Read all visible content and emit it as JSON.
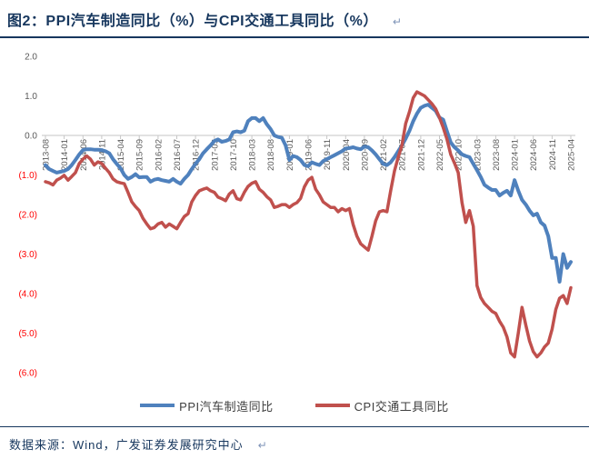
{
  "title": {
    "text": "图2：PPI汽车制造同比（%）与CPI交通工具同比（%）",
    "paragraph_mark": "↵"
  },
  "footer": {
    "text": "数据来源：Wind，广发证券发展研究中心",
    "paragraph_mark": "↵"
  },
  "legend": [
    {
      "label": "PPI汽车制造同比",
      "color": "#4F81BD"
    },
    {
      "label": "CPI交通工具同比",
      "color": "#C0504D"
    }
  ],
  "colors": {
    "navy": "#17375E",
    "axis_line": "#C6C6C6",
    "tick_text": "#595959",
    "negative_tick_text": "#FF0000",
    "legend_text": "#3F3F3F",
    "series_blue": "#4F81BD",
    "series_red": "#C0504D"
  },
  "chart_data": {
    "type": "line",
    "x_start": "2013-08",
    "x_interval_months": 1,
    "n_points": 141,
    "x_tick_labels": [
      "2013-08",
      "2014-01",
      "2014-06",
      "2014-11",
      "2015-04",
      "2015-09",
      "2016-02",
      "2016-07",
      "2016-12",
      "2017-05",
      "2017-10",
      "2018-03",
      "2018-08",
      "2019-01",
      "2019-06",
      "2019-11",
      "2020-04",
      "2020-09",
      "2021-02",
      "2021-07",
      "2021-12",
      "2022-05",
      "2022-10",
      "2023-03",
      "2023-08",
      "2024-01",
      "2024-06",
      "2024-11",
      "2025-04"
    ],
    "x_tick_step": 5,
    "ylim": [
      -6.0,
      2.0
    ],
    "y_ticks": [
      {
        "label": "2.0",
        "value": 2.0,
        "color": "#595959"
      },
      {
        "label": "1.0",
        "value": 1.0,
        "color": "#595959"
      },
      {
        "label": "0.0",
        "value": 0.0,
        "color": "#595959"
      },
      {
        "label": "(1.0)",
        "value": -1.0,
        "color": "#FF0000"
      },
      {
        "label": "(2.0)",
        "value": -2.0,
        "color": "#FF0000"
      },
      {
        "label": "(3.0)",
        "value": -3.0,
        "color": "#FF0000"
      },
      {
        "label": "(4.0)",
        "value": -4.0,
        "color": "#FF0000"
      },
      {
        "label": "(5.0)",
        "value": -5.0,
        "color": "#FF0000"
      },
      {
        "label": "(6.0)",
        "value": -6.0,
        "color": "#FF0000"
      }
    ],
    "grid": false,
    "legend_position": "bottom",
    "series": [
      {
        "name": "PPI汽车制造同比",
        "color": "#4F81BD",
        "values": [
          -0.75,
          -0.85,
          -0.9,
          -0.94,
          -0.92,
          -0.9,
          -0.85,
          -0.75,
          -0.62,
          -0.48,
          -0.37,
          -0.35,
          -0.35,
          -0.36,
          -0.36,
          -0.37,
          -0.4,
          -0.45,
          -0.6,
          -0.72,
          -0.83,
          -1.0,
          -1.1,
          -1.05,
          -0.98,
          -1.06,
          -1.05,
          -1.05,
          -1.17,
          -1.12,
          -1.1,
          -1.13,
          -1.15,
          -1.17,
          -1.1,
          -1.17,
          -1.22,
          -1.1,
          -1.0,
          -0.85,
          -0.72,
          -0.6,
          -0.45,
          -0.35,
          -0.25,
          -0.14,
          -0.1,
          -0.16,
          -0.14,
          -0.1,
          0.08,
          0.1,
          0.08,
          0.12,
          0.36,
          0.44,
          0.44,
          0.36,
          0.44,
          0.28,
          0.16,
          0.0,
          -0.04,
          -0.06,
          -0.25,
          -0.62,
          -0.52,
          -0.55,
          -0.62,
          -0.75,
          -0.78,
          -0.68,
          -0.72,
          -0.75,
          -0.65,
          -0.6,
          -0.55,
          -0.5,
          -0.45,
          -0.4,
          -0.33,
          -0.32,
          -0.3,
          -0.33,
          -0.35,
          -0.28,
          -0.3,
          -0.38,
          -0.48,
          -0.6,
          -0.72,
          -0.75,
          -0.68,
          -0.55,
          -0.4,
          -0.25,
          -0.08,
          0.12,
          0.36,
          0.55,
          0.7,
          0.75,
          0.78,
          0.7,
          0.62,
          0.45,
          0.4,
          0.1,
          -0.18,
          -0.3,
          -0.38,
          -0.48,
          -0.52,
          -0.55,
          -0.72,
          -0.88,
          -1.05,
          -1.25,
          -1.32,
          -1.38,
          -1.38,
          -1.52,
          -1.45,
          -1.4,
          -1.52,
          -1.13,
          -1.4,
          -1.63,
          -1.75,
          -1.9,
          -2.02,
          -1.98,
          -2.2,
          -2.28,
          -2.55,
          -3.1,
          -3.1,
          -3.7,
          -3.0,
          -3.35,
          -3.2
        ]
      },
      {
        "name": "CPI交通工具同比",
        "color": "#C0504D",
        "values": [
          -1.17,
          -1.2,
          -1.25,
          -1.13,
          -1.08,
          -1.01,
          -1.13,
          -1.04,
          -0.94,
          -0.71,
          -0.6,
          -0.52,
          -0.6,
          -0.75,
          -0.67,
          -0.71,
          -0.83,
          -0.94,
          -1.1,
          -1.17,
          -1.2,
          -1.22,
          -1.44,
          -1.68,
          -1.8,
          -1.9,
          -2.1,
          -2.24,
          -2.36,
          -2.33,
          -2.24,
          -2.2,
          -2.32,
          -2.24,
          -2.3,
          -2.36,
          -2.2,
          -2.05,
          -1.98,
          -1.68,
          -1.52,
          -1.4,
          -1.36,
          -1.33,
          -1.4,
          -1.44,
          -1.56,
          -1.6,
          -1.65,
          -1.48,
          -1.4,
          -1.6,
          -1.63,
          -1.44,
          -1.29,
          -1.21,
          -1.17,
          -1.36,
          -1.44,
          -1.55,
          -1.63,
          -1.82,
          -1.79,
          -1.75,
          -1.75,
          -1.82,
          -1.75,
          -1.7,
          -1.59,
          -1.3,
          -1.13,
          -1.06,
          -1.36,
          -1.5,
          -1.68,
          -1.75,
          -1.82,
          -1.82,
          -1.93,
          -1.85,
          -1.9,
          -1.85,
          -2.25,
          -2.55,
          -2.74,
          -2.82,
          -2.9,
          -2.55,
          -2.16,
          -1.93,
          -1.9,
          -1.93,
          -1.4,
          -0.9,
          -0.55,
          -0.25,
          0.3,
          0.6,
          0.95,
          1.1,
          1.05,
          1.0,
          0.9,
          0.8,
          0.67,
          0.45,
          0.2,
          -0.1,
          -0.48,
          -0.7,
          -0.94,
          -1.7,
          -2.2,
          -1.9,
          -2.3,
          -3.8,
          -4.1,
          -4.25,
          -4.35,
          -4.45,
          -4.5,
          -4.7,
          -4.85,
          -5.1,
          -5.5,
          -5.6,
          -5.0,
          -4.35,
          -4.8,
          -5.2,
          -5.47,
          -5.6,
          -5.5,
          -5.35,
          -5.25,
          -4.9,
          -4.4,
          -4.12,
          -4.05,
          -4.25,
          -3.85
        ]
      }
    ]
  }
}
